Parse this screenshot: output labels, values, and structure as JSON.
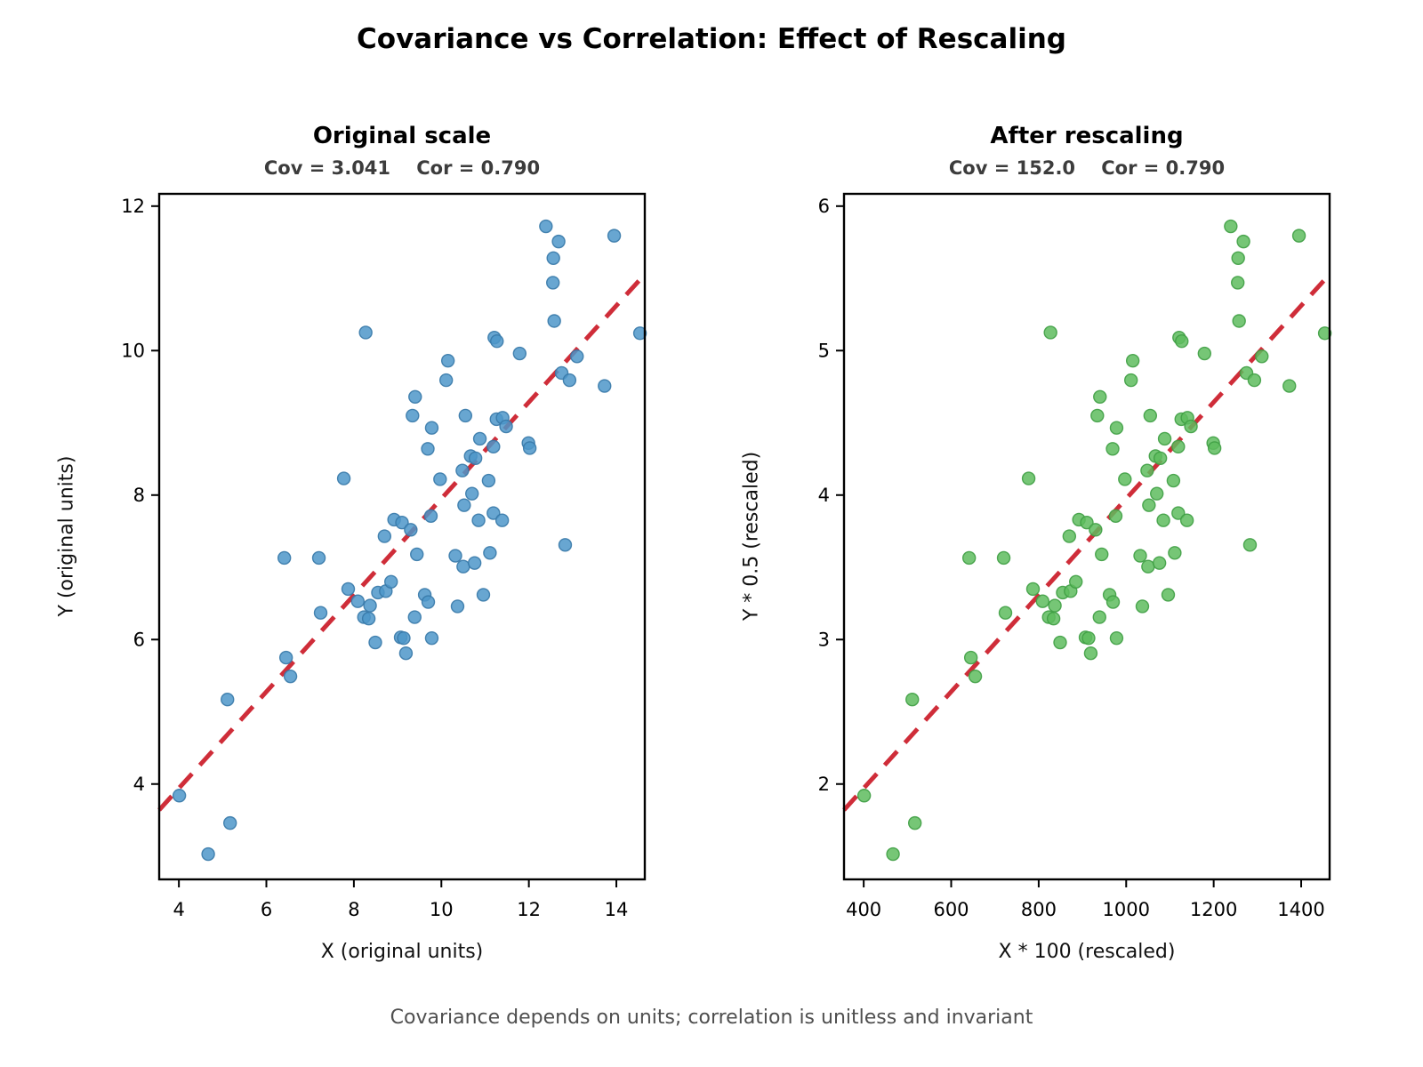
{
  "figure": {
    "title": "Covariance vs Correlation: Effect of Rescaling",
    "caption": "Covariance depends on units; correlation is unitless and invariant"
  },
  "colors": {
    "left_point_fill": "#4d96c9",
    "left_point_edge": "#3779a8",
    "right_point_fill": "#5ebc5e",
    "right_point_edge": "#3f9e44",
    "trend_line": "#cf2d39",
    "axis": "#000000",
    "subtitle_text": "#3c3c3c",
    "caption_text": "#4f4f4f"
  },
  "chart_data": {
    "type": "scatter",
    "grid": false,
    "legend": "none",
    "points_original_units": [
      [
        4.01,
        3.84
      ],
      [
        4.67,
        3.03
      ],
      [
        5.11,
        5.17
      ],
      [
        5.17,
        3.46
      ],
      [
        6.41,
        7.13
      ],
      [
        6.45,
        5.75
      ],
      [
        6.55,
        5.49
      ],
      [
        7.2,
        7.13
      ],
      [
        7.24,
        6.37
      ],
      [
        7.77,
        8.23
      ],
      [
        7.87,
        6.7
      ],
      [
        8.09,
        6.53
      ],
      [
        8.23,
        6.31
      ],
      [
        8.27,
        10.25
      ],
      [
        8.34,
        6.29
      ],
      [
        8.37,
        6.47
      ],
      [
        8.49,
        5.96
      ],
      [
        8.55,
        6.65
      ],
      [
        8.7,
        7.43
      ],
      [
        8.73,
        6.67
      ],
      [
        8.85,
        6.8
      ],
      [
        8.92,
        7.66
      ],
      [
        9.07,
        6.03
      ],
      [
        9.1,
        7.62
      ],
      [
        9.14,
        6.02
      ],
      [
        9.19,
        5.81
      ],
      [
        9.3,
        7.52
      ],
      [
        9.34,
        9.1
      ],
      [
        9.39,
        6.31
      ],
      [
        9.4,
        9.36
      ],
      [
        9.44,
        7.18
      ],
      [
        9.62,
        6.62
      ],
      [
        9.69,
        8.64
      ],
      [
        9.7,
        6.52
      ],
      [
        9.76,
        7.71
      ],
      [
        9.78,
        8.93
      ],
      [
        9.78,
        6.02
      ],
      [
        9.97,
        8.22
      ],
      [
        10.11,
        9.59
      ],
      [
        10.15,
        9.86
      ],
      [
        10.32,
        7.16
      ],
      [
        10.37,
        6.46
      ],
      [
        10.48,
        8.34
      ],
      [
        10.5,
        7.01
      ],
      [
        10.52,
        7.86
      ],
      [
        10.55,
        9.1
      ],
      [
        10.67,
        8.54
      ],
      [
        10.7,
        8.02
      ],
      [
        10.76,
        7.06
      ],
      [
        10.78,
        8.51
      ],
      [
        10.85,
        7.65
      ],
      [
        10.88,
        8.78
      ],
      [
        10.96,
        6.62
      ],
      [
        11.08,
        8.2
      ],
      [
        11.11,
        7.2
      ],
      [
        11.19,
        8.67
      ],
      [
        11.19,
        7.75
      ],
      [
        11.21,
        10.18
      ],
      [
        11.26,
        9.05
      ],
      [
        11.27,
        10.13
      ],
      [
        11.39,
        7.65
      ],
      [
        11.4,
        9.07
      ],
      [
        11.48,
        8.95
      ],
      [
        11.79,
        9.96
      ],
      [
        11.99,
        8.72
      ],
      [
        12.02,
        8.65
      ],
      [
        12.39,
        11.72
      ],
      [
        12.55,
        10.94
      ],
      [
        12.56,
        11.28
      ],
      [
        12.58,
        10.41
      ],
      [
        12.68,
        11.51
      ],
      [
        12.75,
        9.69
      ],
      [
        12.83,
        7.31
      ],
      [
        12.93,
        9.59
      ],
      [
        13.1,
        9.92
      ],
      [
        13.73,
        9.51
      ],
      [
        13.95,
        11.59
      ],
      [
        14.54,
        10.24
      ]
    ],
    "trend": {
      "slope": 0.668,
      "intercept": 1.27,
      "style": "dashed"
    },
    "panels": [
      {
        "id": "original",
        "title": "Original scale",
        "subtitle": "Cov = 3.041    Cor = 0.790",
        "cov": 3.041,
        "cor": 0.79,
        "xlabel": "X (original units)",
        "ylabel": "Y (original units)",
        "xlim": [
          3.55,
          14.65
        ],
        "ylim": [
          2.68,
          12.17
        ],
        "xticks": [
          4,
          6,
          8,
          10,
          12,
          14
        ],
        "yticks": [
          4,
          6,
          8,
          10,
          12
        ],
        "x_scale": 1,
        "y_scale": 1,
        "point_fill": "#4d96c9",
        "point_edge": "#3779a8"
      },
      {
        "id": "rescaled",
        "title": "After rescaling",
        "subtitle": "Cov = 152.0    Cor = 0.790",
        "cov": 152.0,
        "cor": 0.79,
        "xlabel": "X * 100 (rescaled)",
        "ylabel": "Y * 0.5 (rescaled)",
        "xlim": [
          355,
          1465
        ],
        "ylim": [
          1.34,
          6.085
        ],
        "xticks": [
          400,
          600,
          800,
          1000,
          1200,
          1400
        ],
        "yticks": [
          2,
          3,
          4,
          5,
          6
        ],
        "x_scale": 100,
        "y_scale": 0.5,
        "point_fill": "#5ebc5e",
        "point_edge": "#3f9e44"
      }
    ]
  }
}
